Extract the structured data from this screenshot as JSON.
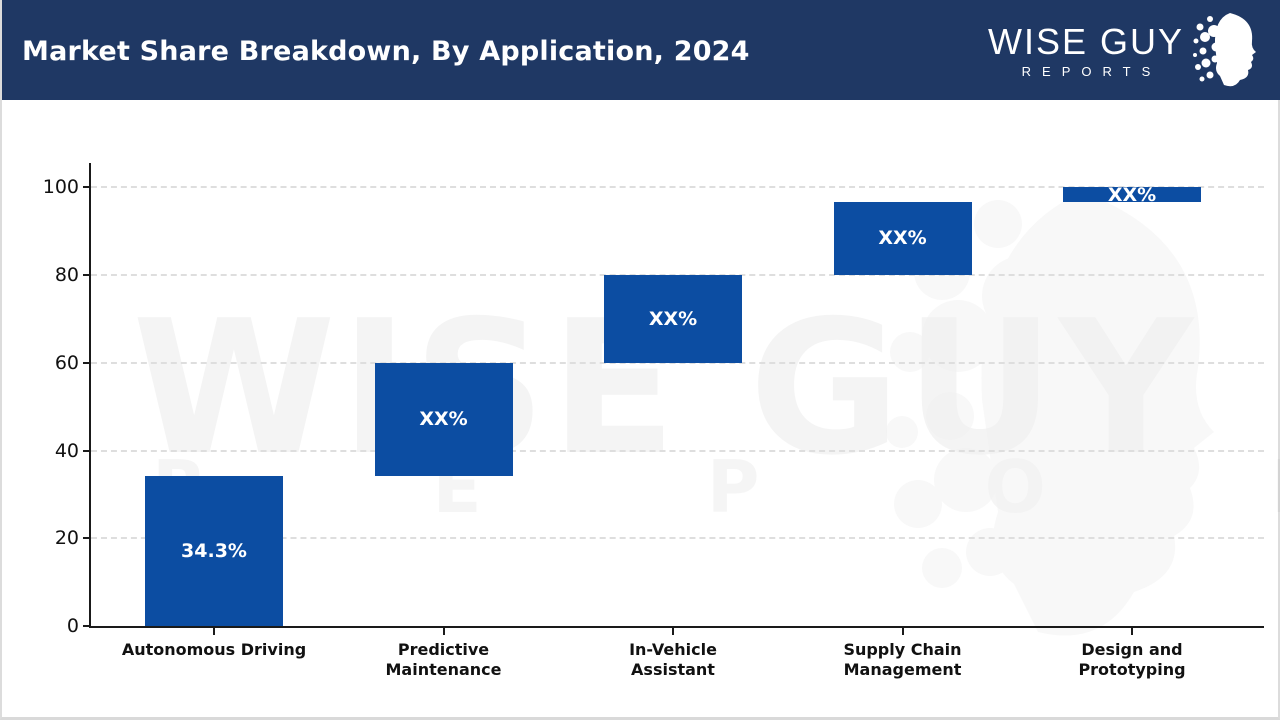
{
  "header": {
    "title": "Market Share Breakdown, By Application, 2024",
    "logo": {
      "line1": "WISE GUY",
      "line2": "REPORTS"
    }
  },
  "watermark": {
    "line1": "WISE GUY",
    "line2": "R E P O R T S"
  },
  "colors": {
    "header_bg": "#1F3864",
    "bar_blue": "#0C4DA2",
    "axis": "#1a1a1a",
    "grid": "#dedede",
    "value_label_inside": "#FFFFFF",
    "value_label_outside": "#000000"
  },
  "chart_data": {
    "type": "bar",
    "subtype": "waterfall",
    "title": "Market Share Breakdown, By Application, 2024",
    "xlabel": "",
    "ylabel": "",
    "ylim": [
      0,
      105
    ],
    "yticks": [
      0,
      20,
      40,
      60,
      80,
      100
    ],
    "grid": "horizontal dashed",
    "legend": "none",
    "categories": [
      "Autonomous Driving",
      "Predictive Maintenance",
      "In-Vehicle Assistant",
      "Supply Chain Management",
      "Design and Prototyping"
    ],
    "bars": [
      {
        "category": "Autonomous Driving",
        "label_lines": [
          "Autonomous Driving"
        ],
        "start": 0,
        "end": 34.3,
        "value_label": "34.3%"
      },
      {
        "category": "Predictive Maintenance",
        "label_lines": [
          "Predictive",
          "Maintenance"
        ],
        "start": 34.3,
        "end": 60,
        "value_label": "XX%"
      },
      {
        "category": "In-Vehicle Assistant",
        "label_lines": [
          "In-Vehicle",
          "Assistant"
        ],
        "start": 60,
        "end": 80,
        "value_label": "XX%"
      },
      {
        "category": "Supply Chain Management",
        "label_lines": [
          "Supply Chain",
          "Management"
        ],
        "start": 80,
        "end": 96.7,
        "value_label": "XX%"
      },
      {
        "category": "Design and Prototyping",
        "label_lines": [
          "Design and",
          "Prototyping"
        ],
        "start": 96.7,
        "end": 100,
        "value_label": "XX%"
      }
    ]
  }
}
